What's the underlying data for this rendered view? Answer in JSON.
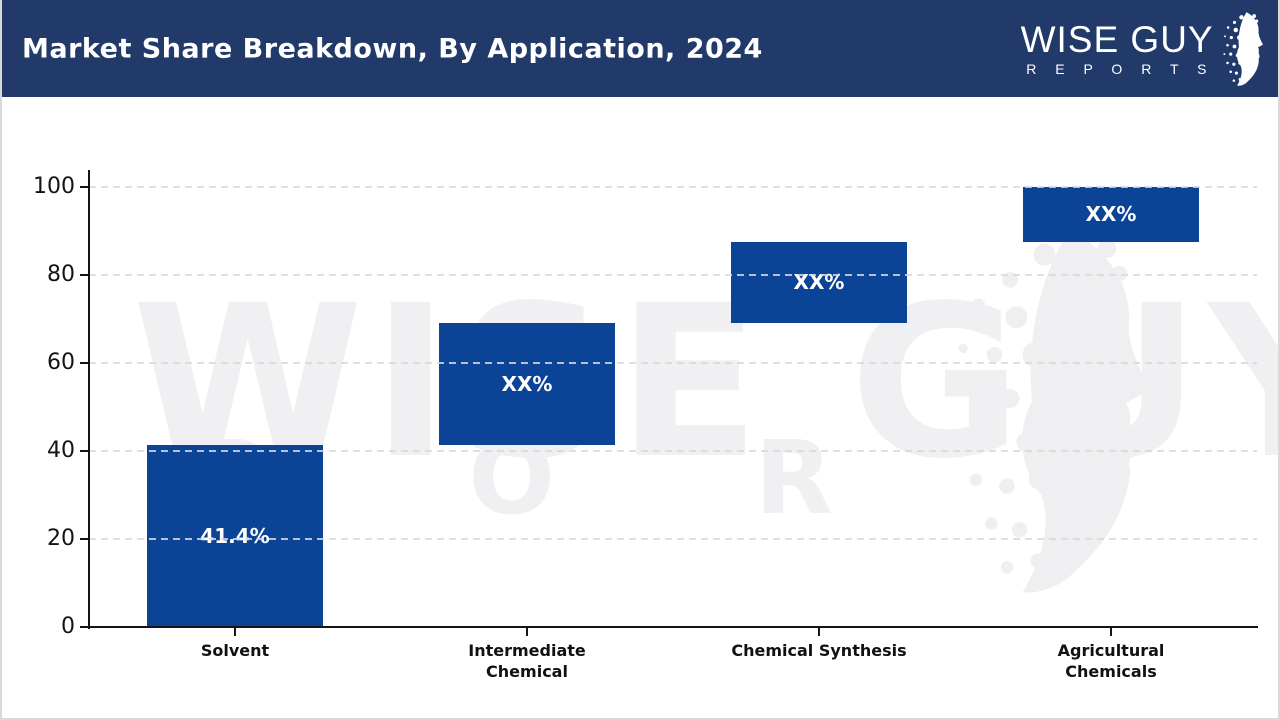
{
  "header": {
    "title": "Market Share Breakdown, By Application, 2024",
    "background": "#213a6a",
    "logo": {
      "line1": "WISE GUY",
      "line2": "R E P O R T S"
    }
  },
  "watermark": {
    "line1": "WISE GUY",
    "line2": "P O R T S"
  },
  "chart_data": {
    "type": "bar",
    "subtype": "waterfall",
    "title": "Market Share Breakdown, By Application, 2024",
    "categories": [
      "Solvent",
      "Intermediate\nChemical",
      "Chemical Synthesis",
      "Agricultural\nChemicals"
    ],
    "bars": [
      {
        "category": "Solvent",
        "start": 0,
        "end": 41.4,
        "label": "41.4%"
      },
      {
        "category": "Intermediate Chemical",
        "start": 41.4,
        "end": 69.2,
        "label": "XX%"
      },
      {
        "category": "Chemical Synthesis",
        "start": 69.2,
        "end": 87.6,
        "label": "XX%"
      },
      {
        "category": "Agricultural Chemicals",
        "start": 87.6,
        "end": 100,
        "label": "XX%"
      }
    ],
    "yticks": [
      0,
      20,
      40,
      60,
      80,
      100
    ],
    "ylim": [
      0,
      104
    ],
    "xlabel": "",
    "ylabel": "",
    "grid": "horizontal-dashed",
    "legend": "none",
    "bar_color": "#0b4397",
    "bar_label_color": "#ffffff",
    "axis_color": "#141414",
    "gridline_color": "#d9d9d9"
  },
  "colors": {
    "header_navy": "#213a6a",
    "bar_blue": "#0b4397",
    "watermark_gray": "#f0f0f2",
    "border_gray": "#d9d9d9"
  }
}
